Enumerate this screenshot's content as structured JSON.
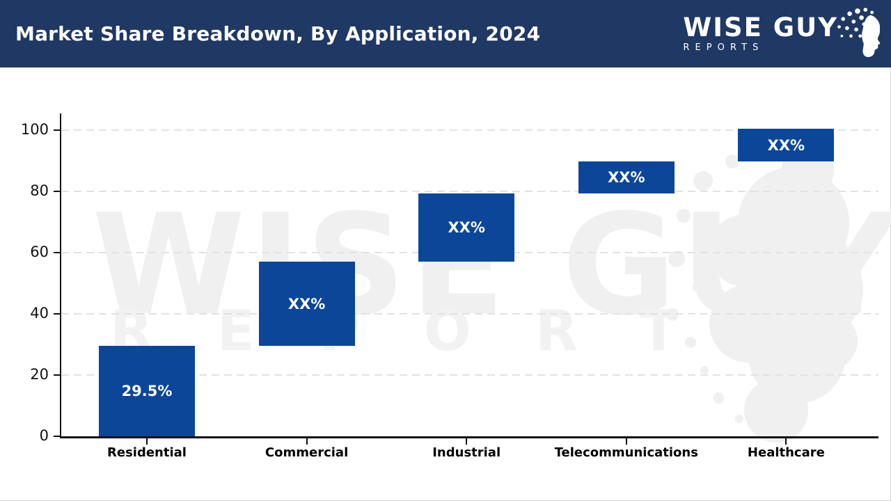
{
  "header": {
    "title": "Market Share Breakdown, By Application, 2024",
    "background": "#1f3864",
    "logo": {
      "line1": "WISE GUY",
      "line2": "REPORTS"
    }
  },
  "watermark": {
    "line1": "WISE GUY",
    "line2": "REPORTS"
  },
  "chart_data": {
    "type": "bar",
    "subtype": "waterfall-floating-bars",
    "title": "Market Share Breakdown, By Application, 2024",
    "categories": [
      "Residential",
      "Commercial",
      "Industrial",
      "Telecommunications",
      "Healthcare"
    ],
    "segments": [
      {
        "category": "Residential",
        "start": 0,
        "end": 29.5,
        "label": "29.5%"
      },
      {
        "category": "Commercial",
        "start": 29.5,
        "end": 57.0,
        "label": "XX%"
      },
      {
        "category": "Industrial",
        "start": 57.0,
        "end": 79.3,
        "label": "XX%"
      },
      {
        "category": "Telecommunications",
        "start": 79.3,
        "end": 89.7,
        "label": "XX%"
      },
      {
        "category": "Healthcare",
        "start": 89.7,
        "end": 100.4,
        "label": "XX%"
      }
    ],
    "yticks": [
      0,
      20,
      40,
      60,
      80,
      100
    ],
    "ylim": [
      0,
      105.5
    ],
    "xlabel": "",
    "ylabel": "",
    "bar_color": "#0c4699",
    "value_label_color": "#ffffff",
    "grid": "horizontal-dashed",
    "gridline_color": "#e2e2e2",
    "legend": "none"
  }
}
